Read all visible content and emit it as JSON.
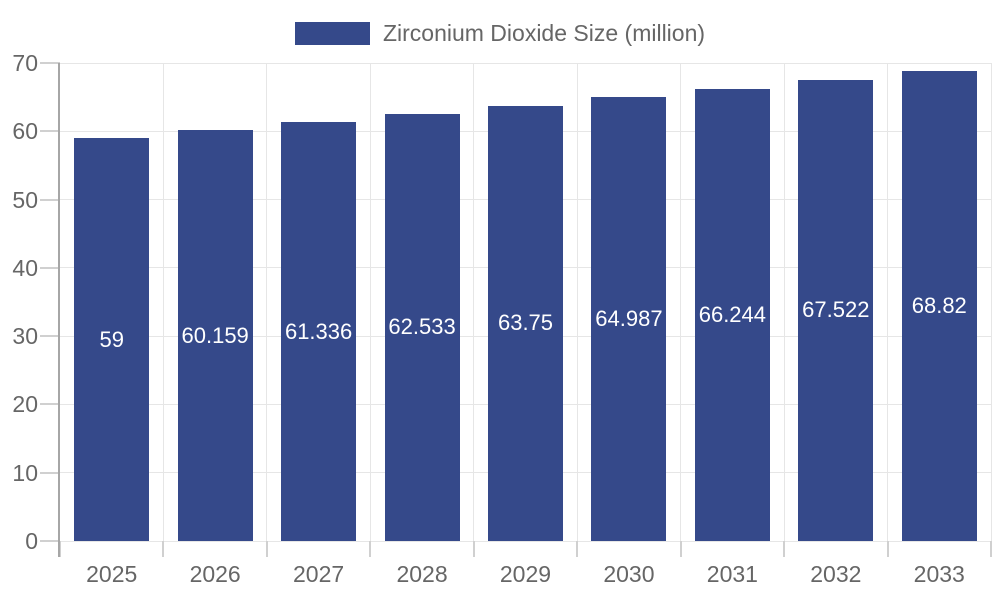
{
  "legend": {
    "label": "Zirconium Dioxide Size (million)"
  },
  "chart_data": {
    "type": "bar",
    "title": "Zirconium Dioxide Size (million)",
    "categories": [
      "2025",
      "2026",
      "2027",
      "2028",
      "2029",
      "2030",
      "2031",
      "2032",
      "2033"
    ],
    "values": [
      59,
      60.159,
      61.336,
      62.533,
      63.75,
      64.987,
      66.244,
      67.522,
      68.82
    ],
    "value_labels": [
      "59",
      "60.159",
      "61.336",
      "62.533",
      "63.75",
      "64.987",
      "66.244",
      "67.522",
      "68.82"
    ],
    "xlabel": "",
    "ylabel": "",
    "ylim": [
      0,
      70
    ],
    "ytick_interval": 10,
    "ytick_labels": [
      "0",
      "10",
      "20",
      "30",
      "40",
      "50",
      "60",
      "70"
    ],
    "grid": true,
    "legend_position": "top-center",
    "colors": {
      "bar": "#35498a",
      "value_label": "#ffffff",
      "axis_text": "#666666",
      "grid_line": "#e6e6e6",
      "tick": "#d0d0d0",
      "axis_line": "#a6a6a6",
      "background": "#ffffff"
    }
  }
}
